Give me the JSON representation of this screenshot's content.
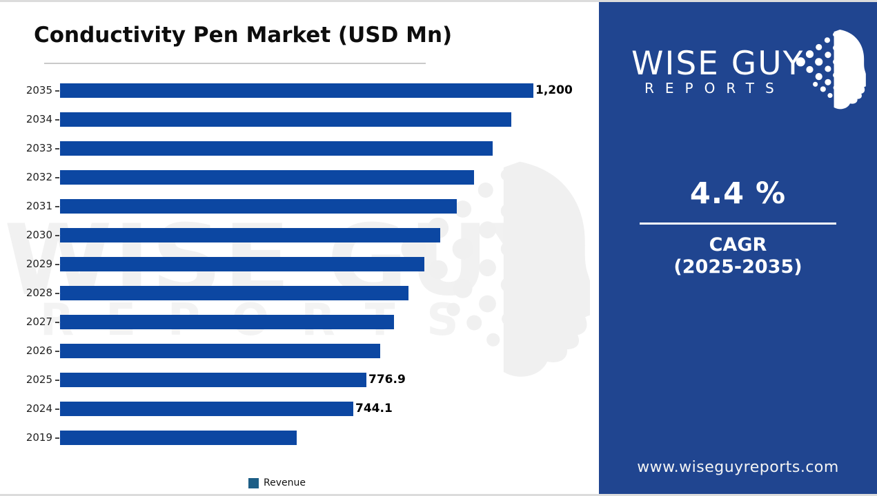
{
  "title": "Conductivity Pen Market (USD Mn)",
  "chart_data": {
    "type": "bar",
    "orientation": "horizontal",
    "title": "Conductivity Pen Market (USD Mn)",
    "xlabel": "",
    "ylabel": "",
    "grid": false,
    "legend_position": "bottom",
    "categories": [
      "2035",
      "2034",
      "2033",
      "2032",
      "2031",
      "2030",
      "2029",
      "2028",
      "2027",
      "2026",
      "2025",
      "2024",
      "2019"
    ],
    "series": [
      {
        "name": "Revenue",
        "values": [
          1200,
          1144.6,
          1096.4,
          1050.2,
          1005.9,
          963.5,
          922.9,
          884.0,
          846.8,
          811.1,
          776.9,
          744.1,
          600.0
        ]
      }
    ],
    "bar_labels": [
      "1,200",
      "",
      "",
      "",
      "",
      "",
      "",
      "",
      "",
      "",
      "776.9",
      "744.1",
      ""
    ],
    "bar_color": "#0c47a2",
    "legend_swatch_color": "#1d5e86"
  },
  "legend": {
    "label": "Revenue"
  },
  "watermark": {
    "line1": "WISE GUY",
    "line2": "REPORTS"
  },
  "panel": {
    "brand_line1": "WISE GUY",
    "brand_line2": "REPORTS",
    "cagr_value": "4.4 %",
    "cagr_line1": "CAGR",
    "cagr_line2": "(2025-2035)",
    "website": "www.wiseguyreports.com",
    "bg_color": "#204590"
  }
}
